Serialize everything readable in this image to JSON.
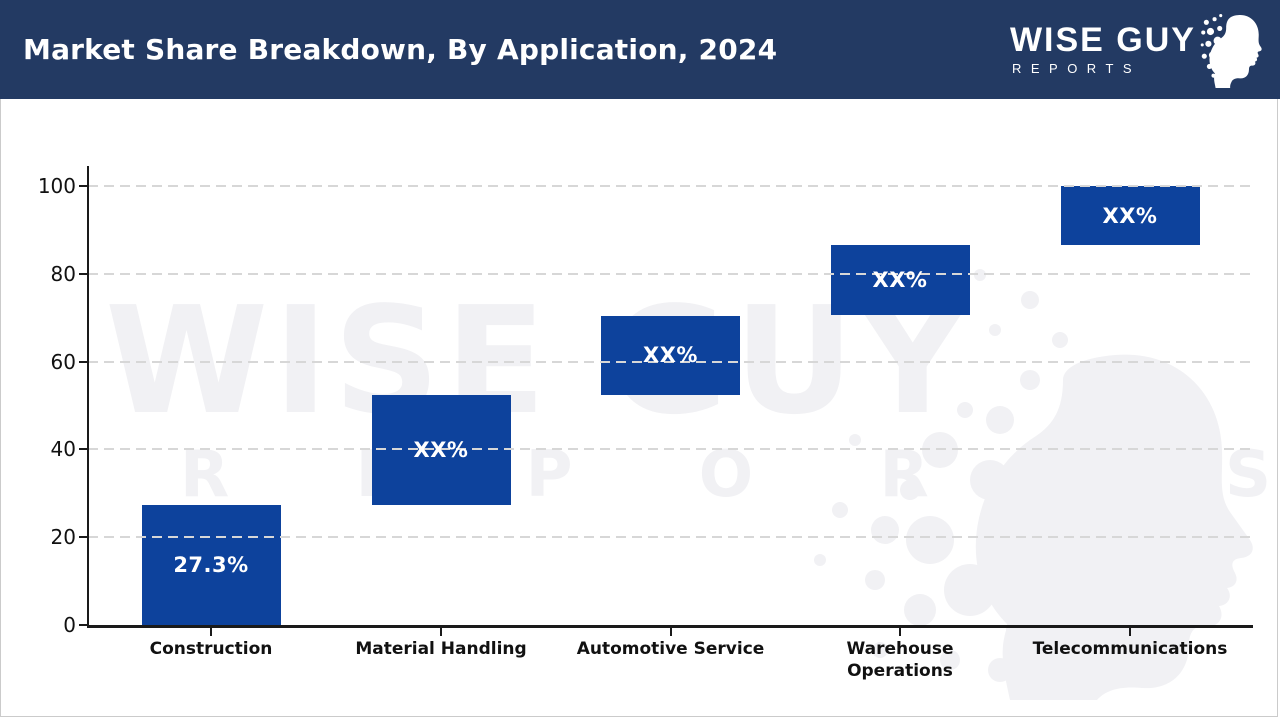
{
  "header": {
    "title": "Market Share Breakdown, By Application, 2024",
    "bg_color": "#233a63",
    "logo": {
      "line1": "WISE GUY",
      "line2": "REPORTS"
    }
  },
  "watermark": {
    "line1": "WISE GUY",
    "line2": "R E P O R T S"
  },
  "chart_data": {
    "type": "bar",
    "subtype": "waterfall",
    "title": "Market Share Breakdown, By Application, 2024",
    "categories": [
      "Construction",
      "Material Handling",
      "Automotive Service",
      "Warehouse Operations",
      "Telecommunications"
    ],
    "x_tick_label_lines": [
      [
        "Construction"
      ],
      [
        "Material Handling"
      ],
      [
        "Automotive Service"
      ],
      [
        "Warehouse",
        "Operations"
      ],
      [
        "Telecommunications"
      ]
    ],
    "segments": [
      {
        "category": "Construction",
        "start": 0,
        "end": 27.3,
        "label": "27.3%"
      },
      {
        "category": "Material Handling",
        "start": 27.3,
        "end": 52.5,
        "label": "XX%"
      },
      {
        "category": "Automotive Service",
        "start": 52.5,
        "end": 70.5,
        "label": "XX%"
      },
      {
        "category": "Warehouse Operations",
        "start": 70.5,
        "end": 86.5,
        "label": "XX%"
      },
      {
        "category": "Telecommunications",
        "start": 86.5,
        "end": 100,
        "label": "XX%"
      }
    ],
    "y_ticks": [
      0,
      20,
      40,
      60,
      80,
      100
    ],
    "ylim": [
      0,
      100
    ],
    "xlabel": "",
    "ylabel": "",
    "legend": "none",
    "grid": "horizontal dashed gridlines at y ticks, drawn above bars",
    "bar_color": "#0d429c",
    "bar_label_color": "#ffffff",
    "axis_color": "#1a1a1a",
    "gridline_color": "#d7d7d7"
  }
}
